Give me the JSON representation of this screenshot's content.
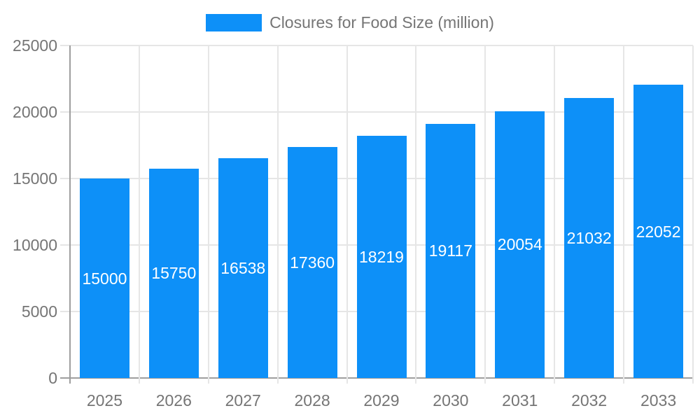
{
  "chart_data": {
    "type": "bar",
    "title": "",
    "xlabel": "",
    "ylabel": "",
    "legend_position": "top",
    "grid": true,
    "categories": [
      "2025",
      "2026",
      "2027",
      "2028",
      "2029",
      "2030",
      "2031",
      "2032",
      "2033"
    ],
    "series": [
      {
        "name": "Closures for Food Size (million)",
        "values": [
          15000,
          15750,
          16538,
          17360,
          18219,
          19117,
          20054,
          21032,
          22052
        ]
      }
    ],
    "value_labels": [
      "15000",
      "15750",
      "16538",
      "17360",
      "18219",
      "19117",
      "20054",
      "21032",
      "22052"
    ],
    "ylim": [
      0,
      25000
    ],
    "yticks": [
      0,
      5000,
      10000,
      15000,
      20000,
      25000
    ],
    "colors": {
      "bar": "#0d90f8",
      "axis_text": "#757575",
      "value_label_text": "#ffffff",
      "axis_line": "#9e9e9e",
      "gridline": "#e6e6e6",
      "background": "#ffffff"
    }
  }
}
